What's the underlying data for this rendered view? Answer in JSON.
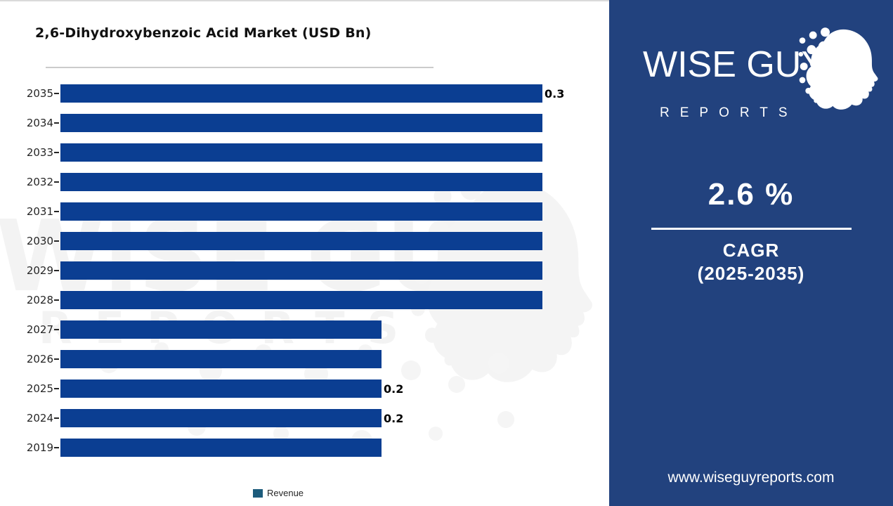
{
  "chart": {
    "title": "2,6-Dihydroxybenzoic Acid Market (USD Bn)",
    "bar_color": "#0b3e92",
    "legend": {
      "label": "Revenue",
      "swatch_color": "#1d5c7c"
    }
  },
  "chart_data": {
    "type": "bar",
    "orientation": "horizontal",
    "title": "2,6-Dihydroxybenzoic Acid Market (USD Bn)",
    "units": "USD Bn",
    "categories": [
      "2035",
      "2034",
      "2033",
      "2032",
      "2031",
      "2030",
      "2029",
      "2028",
      "2027",
      "2026",
      "2025",
      "2024",
      "2019"
    ],
    "values": [
      0.3,
      0.3,
      0.3,
      0.3,
      0.3,
      0.3,
      0.3,
      0.3,
      0.2,
      0.2,
      0.2,
      0.2,
      0.2
    ],
    "data_labels": [
      "0.3",
      "",
      "",
      "",
      "",
      "",
      "",
      "",
      "",
      "",
      "0.2",
      "0.2",
      ""
    ],
    "xlim": [
      0,
      0.32
    ],
    "grid": false,
    "legend_entries": [
      "Revenue"
    ],
    "legend_position": "bottom-center"
  },
  "watermark": {
    "line1": "WISE GUY",
    "line2": "REPORTS"
  },
  "sidebar": {
    "logo_line1": "WISE GUY",
    "logo_line2": "REPORTS",
    "cagr_value": "2.6 %",
    "cagr_label": "CAGR",
    "cagr_range": "(2025-2035)",
    "website": "www.wiseguyreports.com",
    "background_color": "#22427e"
  }
}
